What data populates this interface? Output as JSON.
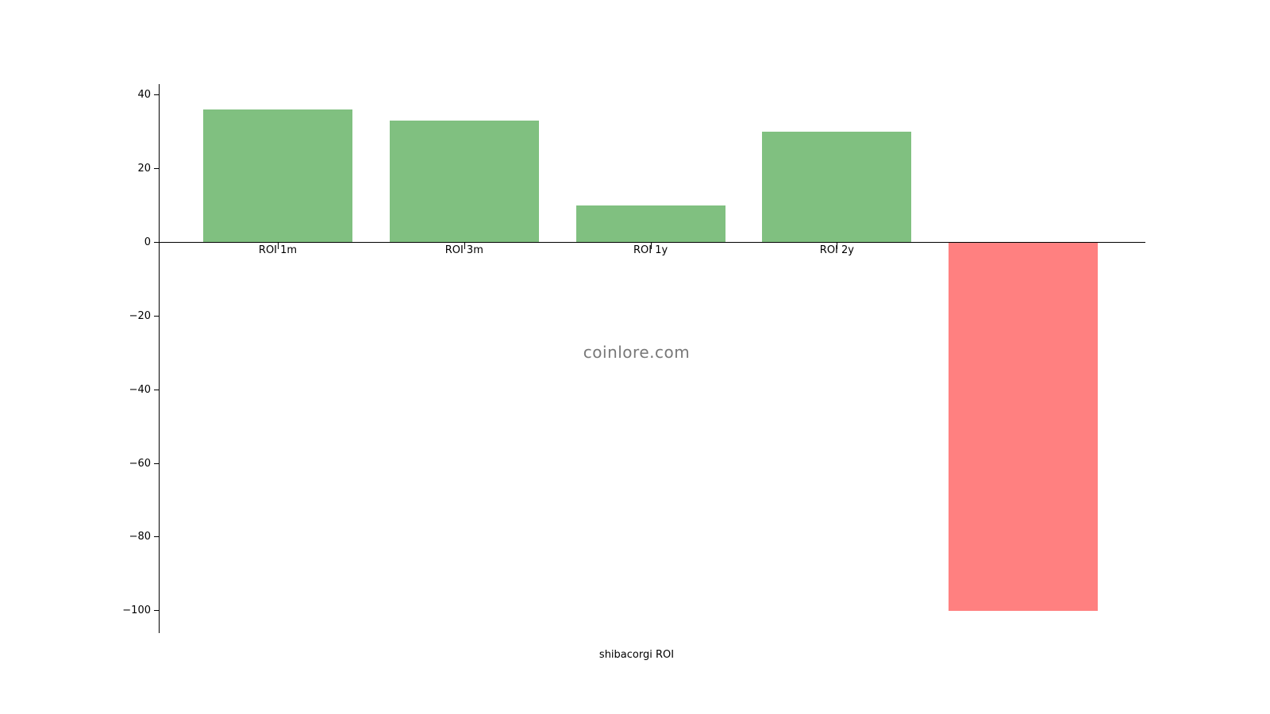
{
  "chart_data": {
    "type": "bar",
    "title": "shibacorgi ROI",
    "watermark": "coinlore.com",
    "categories": [
      "ROI 1m",
      "ROI 3m",
      "ROI 1y",
      "ROI 2y",
      ""
    ],
    "values": [
      36,
      33,
      10,
      30,
      -100
    ],
    "positive_color": "#80c080",
    "negative_color": "#ff8080",
    "yticks": [
      {
        "value": 40,
        "label": "40"
      },
      {
        "value": 20,
        "label": "20"
      },
      {
        "value": 0,
        "label": "0"
      },
      {
        "value": -20,
        "label": "−20"
      },
      {
        "value": -40,
        "label": "−40"
      },
      {
        "value": -60,
        "label": "−60"
      },
      {
        "value": -80,
        "label": "−80"
      },
      {
        "value": -100,
        "label": "−100"
      }
    ],
    "ylim": [
      -106,
      43
    ],
    "xlabel": "",
    "ylabel": "",
    "grid": false,
    "legend": null,
    "axis_color": "#000000",
    "text_color": "#000000",
    "watermark_color": "#787878"
  }
}
